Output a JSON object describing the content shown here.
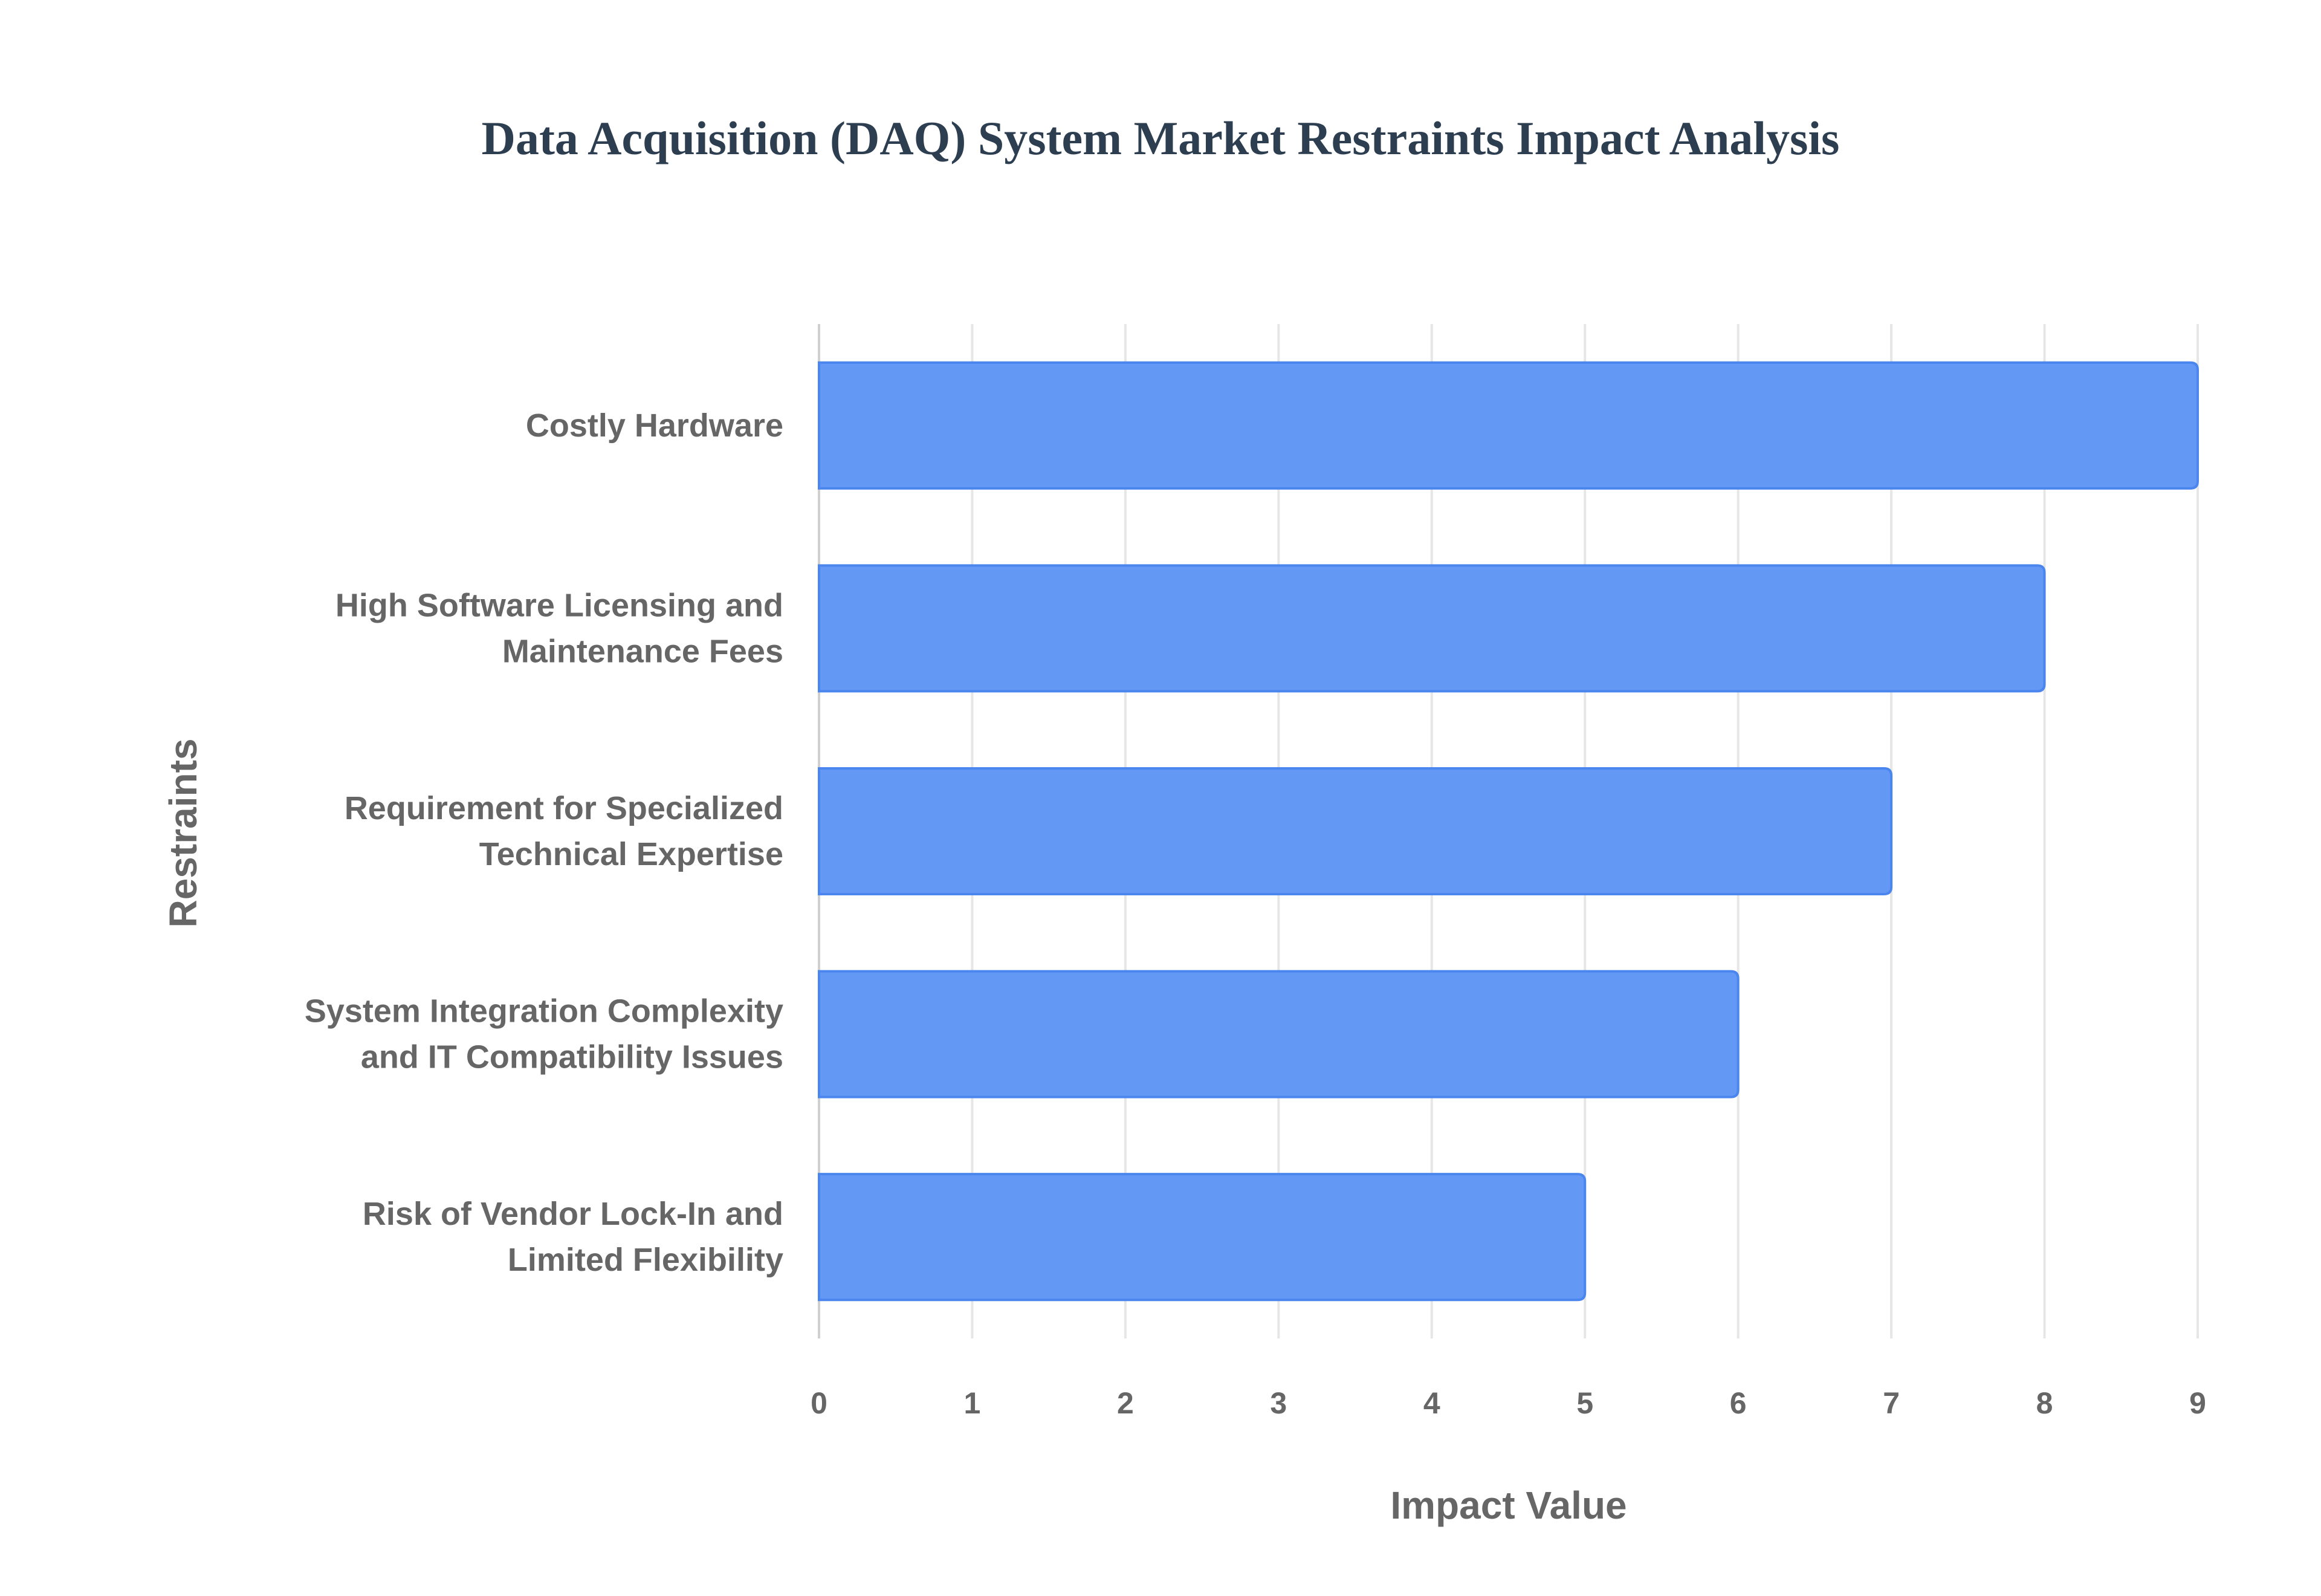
{
  "chart_data": {
    "type": "bar",
    "orientation": "horizontal",
    "title": "Data Acquisition (DAQ) System Market Restraints Impact Analysis",
    "xlabel": "Impact Value",
    "ylabel": "Restraints",
    "categories": [
      [
        "Costly Hardware"
      ],
      [
        "High Software Licensing and",
        "Maintenance Fees"
      ],
      [
        "Requirement for Specialized",
        "Technical Expertise"
      ],
      [
        "System Integration Complexity",
        "and IT Compatibility Issues"
      ],
      [
        "Risk of Vendor Lock-In and",
        "Limited Flexibility"
      ]
    ],
    "values": [
      9,
      8,
      7,
      6,
      5
    ],
    "xlim": [
      0,
      9
    ],
    "xticks": [
      0,
      1,
      2,
      3,
      4,
      5,
      6,
      7,
      8,
      9
    ],
    "grid": true,
    "legend": "none",
    "colors": {
      "bar_fill": "#6399F5",
      "bar_border": "#4A86EE",
      "grid": "#e6e6e6",
      "text": "#666666",
      "title": "#2c3e50"
    }
  }
}
